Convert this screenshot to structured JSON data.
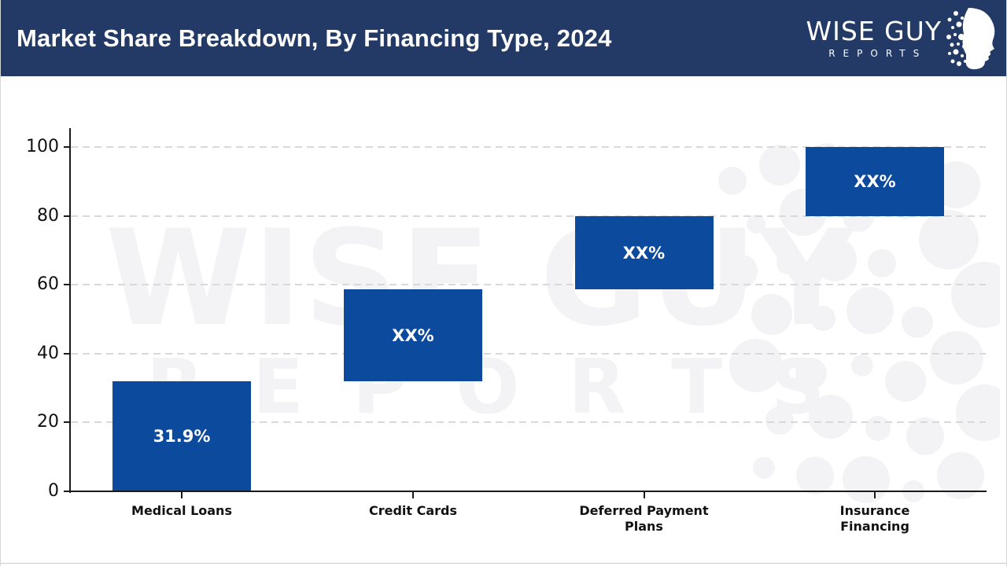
{
  "header": {
    "title": "Market Share Breakdown, By Financing Type, 2024",
    "logo": {
      "line1": "WISE GUY",
      "line2": "REPORTS"
    }
  },
  "watermark": {
    "line1": "WISE GUY",
    "line2": "REPORTS"
  },
  "chart_data": {
    "type": "bar",
    "subtype": "waterfall",
    "title": "Market Share Breakdown, By Financing Type, 2024",
    "xlabel": "",
    "ylabel": "",
    "categories": [
      "Medical Loans",
      "Credit Cards",
      "Deferred Payment Plans",
      "Insurance Financing"
    ],
    "categories_lines": [
      [
        "Medical Loans"
      ],
      [
        "Credit Cards"
      ],
      [
        "Deferred Payment",
        "Plans"
      ],
      [
        "Insurance",
        "Financing"
      ]
    ],
    "segments": [
      {
        "category": "Medical Loans",
        "start": 0,
        "end": 31.9,
        "label": "31.9%"
      },
      {
        "category": "Credit Cards",
        "start": 31.9,
        "end": 58.6,
        "label": "XX%"
      },
      {
        "category": "Deferred Payment Plans",
        "start": 58.6,
        "end": 79.9,
        "label": "XX%"
      },
      {
        "category": "Insurance Financing",
        "start": 79.9,
        "end": 100,
        "label": "XX%"
      }
    ],
    "y_ticks": [
      0,
      20,
      40,
      60,
      80,
      100
    ],
    "ylim": [
      0,
      105
    ],
    "grid": "dashed-horizontal",
    "legend": "none",
    "bar_color": "#0c4a9e",
    "bar_label_color": "#ffffff",
    "axis_color": "#1a1a1a",
    "gridline_color": "#d9d9d9",
    "header_color": "#233a66",
    "watermark_color": "#f3f3f5"
  }
}
